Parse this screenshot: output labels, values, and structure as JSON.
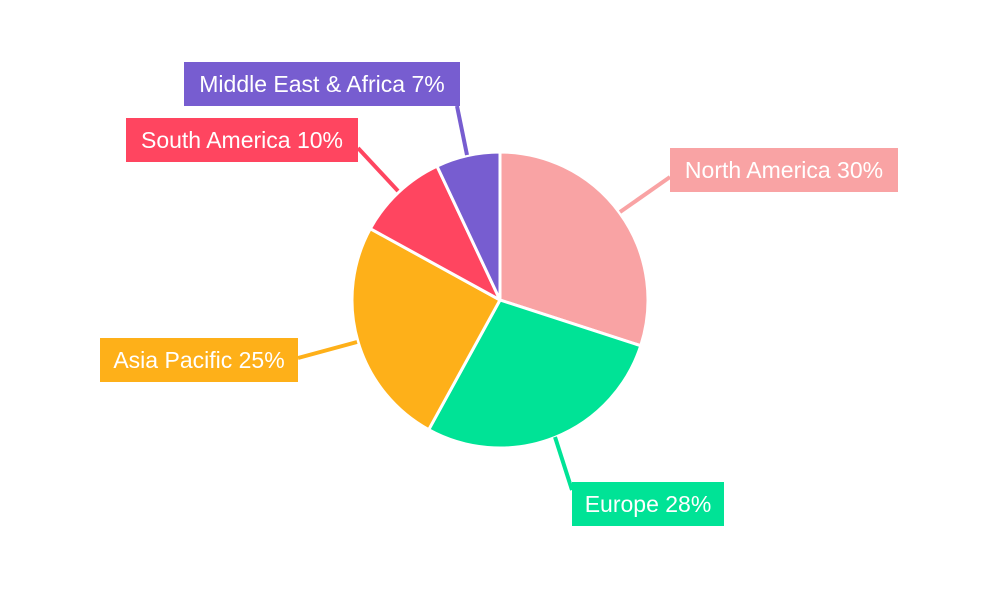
{
  "chart_data": {
    "type": "pie",
    "title": "",
    "categories": [
      "North America",
      "Europe",
      "Asia Pacific",
      "South America",
      "Middle East & Africa"
    ],
    "values": [
      30,
      28,
      25,
      10,
      7
    ],
    "labels": [
      "North America 30%",
      "Europe 28%",
      "Asia Pacific 25%",
      "South America 10%",
      "Middle East & Africa 7%"
    ],
    "colors": [
      "#F9A3A4",
      "#00E396",
      "#FEB019",
      "#FF4560",
      "#775DD0"
    ],
    "start_angle": "top, clockwise",
    "legend": "none"
  }
}
